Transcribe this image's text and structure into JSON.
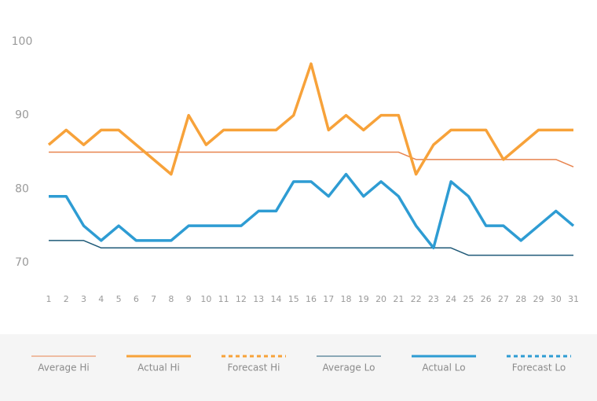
{
  "chart_data": {
    "type": "line",
    "x": [
      1,
      2,
      3,
      4,
      5,
      6,
      7,
      8,
      9,
      10,
      11,
      12,
      13,
      14,
      15,
      16,
      17,
      18,
      19,
      20,
      21,
      22,
      23,
      24,
      25,
      26,
      27,
      28,
      29,
      30,
      31
    ],
    "xlim": [
      1,
      31
    ],
    "ylim": [
      70,
      100
    ],
    "yticks": [
      70,
      80,
      90,
      100
    ],
    "grid": false,
    "legend": "bottom",
    "series": [
      {
        "name": "Average Hi",
        "color": "#e8844e",
        "weight": "thin",
        "line_style": "solid",
        "values": [
          85,
          85,
          85,
          85,
          85,
          85,
          85,
          85,
          85,
          85,
          85,
          85,
          85,
          85,
          85,
          85,
          85,
          85,
          85,
          85,
          85,
          84,
          84,
          84,
          84,
          84,
          84,
          84,
          84,
          84,
          83
        ]
      },
      {
        "name": "Actual Hi",
        "color": "#f7a23a",
        "weight": "bold",
        "line_style": "solid",
        "values": [
          86,
          88,
          86,
          88,
          88,
          86,
          84,
          82,
          90,
          86,
          88,
          88,
          88,
          88,
          90,
          97,
          88,
          90,
          88,
          90,
          90,
          82,
          86,
          88,
          88,
          88,
          84,
          86,
          88,
          88,
          88
        ]
      },
      {
        "name": "Forecast Hi",
        "color": "#f7a23a",
        "weight": "bold",
        "line_style": "dashed",
        "values": [
          null,
          null,
          null,
          null,
          null,
          null,
          null,
          null,
          null,
          null,
          null,
          null,
          null,
          null,
          null,
          null,
          null,
          null,
          null,
          null,
          null,
          null,
          null,
          null,
          null,
          null,
          null,
          null,
          null,
          null,
          null
        ]
      },
      {
        "name": "Average Lo",
        "color": "#1f5a78",
        "weight": "thin",
        "line_style": "solid",
        "values": [
          73,
          73,
          73,
          72,
          72,
          72,
          72,
          72,
          72,
          72,
          72,
          72,
          72,
          72,
          72,
          72,
          72,
          72,
          72,
          72,
          72,
          72,
          72,
          72,
          71,
          71,
          71,
          71,
          71,
          71,
          71
        ]
      },
      {
        "name": "Actual Lo",
        "color": "#2e9cd3",
        "weight": "bold",
        "line_style": "solid",
        "values": [
          79,
          79,
          75,
          73,
          75,
          73,
          73,
          73,
          75,
          75,
          75,
          75,
          77,
          77,
          81,
          81,
          79,
          82,
          79,
          81,
          79,
          75,
          72,
          81,
          79,
          75,
          75,
          73,
          75,
          77,
          75
        ]
      },
      {
        "name": "Forecast Lo",
        "color": "#2e9cd3",
        "weight": "bold",
        "line_style": "dashed",
        "values": [
          null,
          null,
          null,
          null,
          null,
          null,
          null,
          null,
          null,
          null,
          null,
          null,
          null,
          null,
          null,
          null,
          null,
          null,
          null,
          null,
          null,
          null,
          null,
          null,
          null,
          null,
          null,
          null,
          null,
          null,
          null
        ]
      }
    ]
  }
}
